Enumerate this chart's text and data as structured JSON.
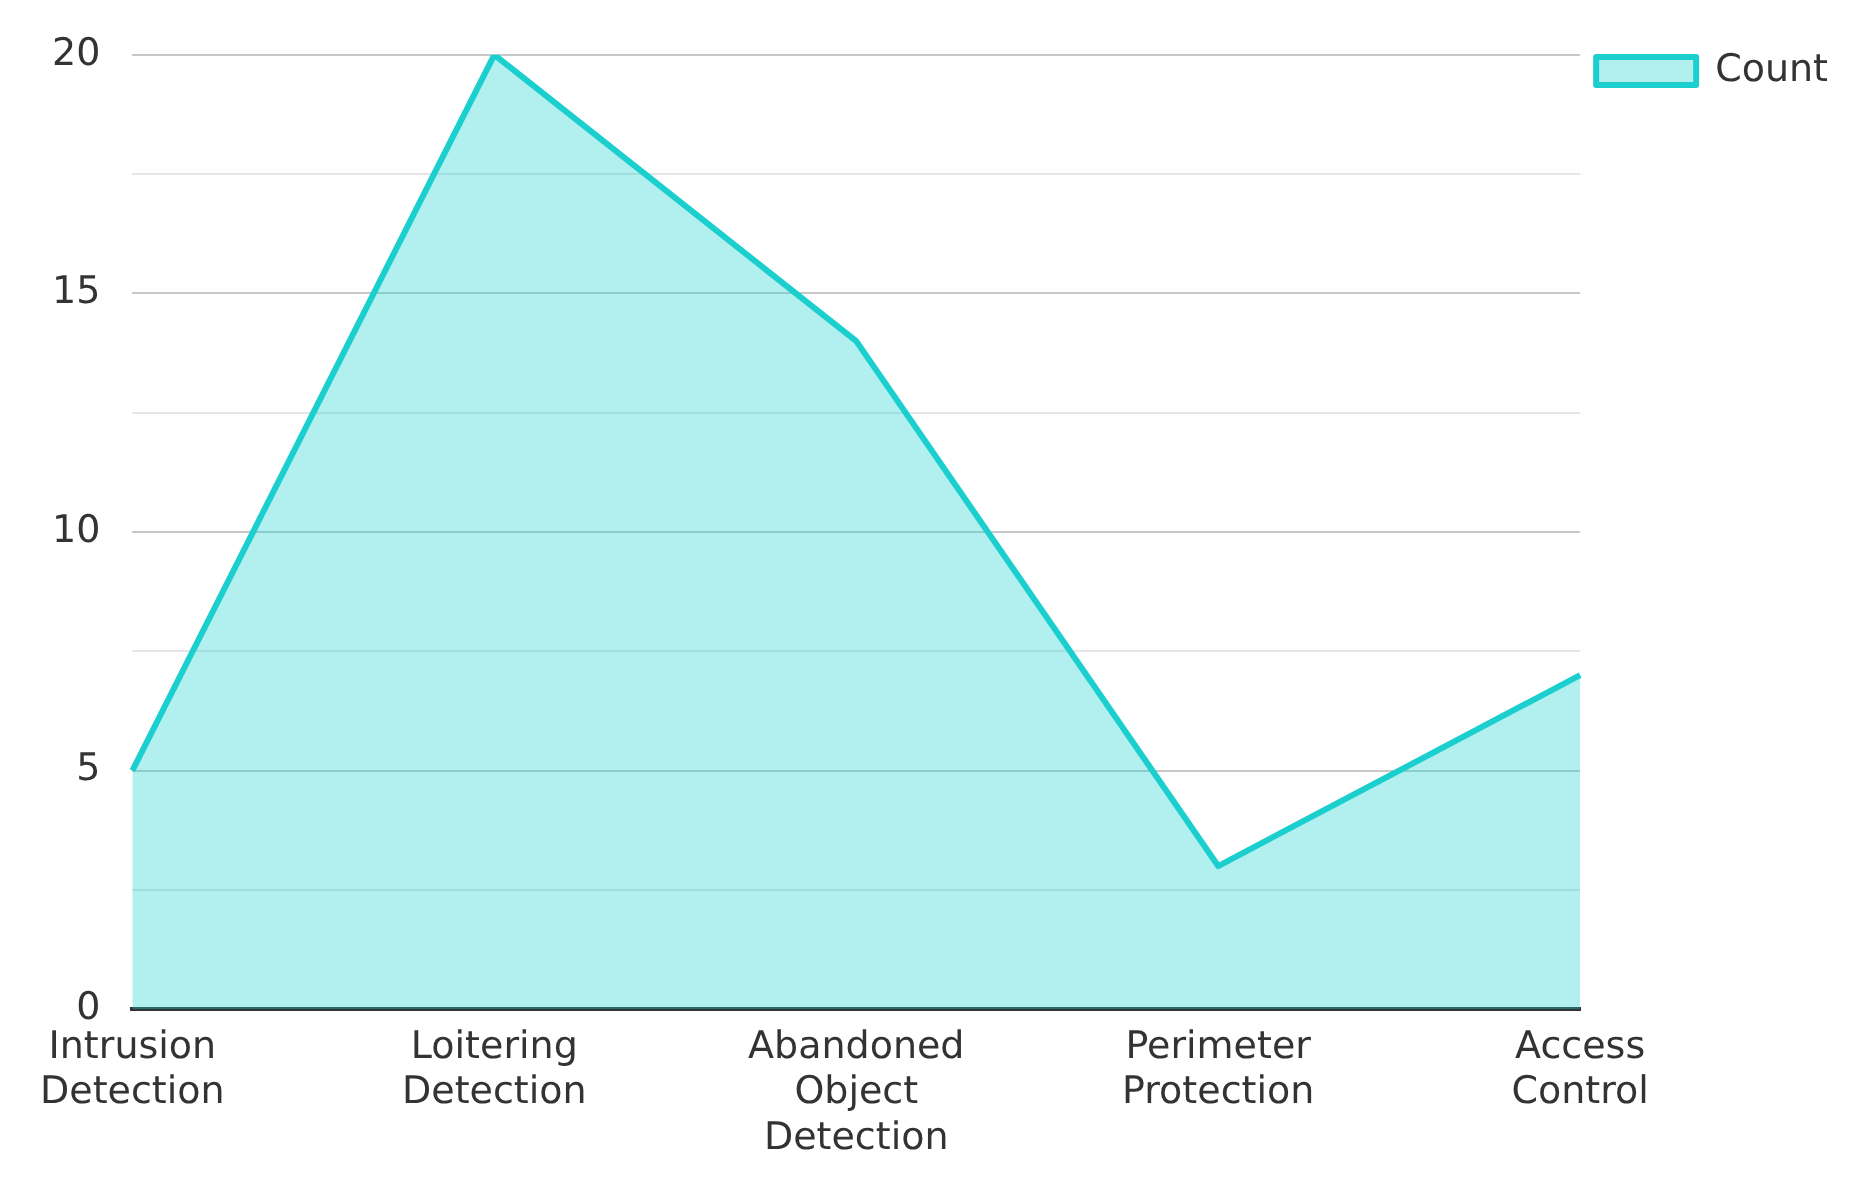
{
  "chart_data": {
    "type": "area",
    "categories": [
      "Intrusion Detection",
      "Loitering Detection",
      "Abandoned Object Detection",
      "Perimeter Protection",
      "Access Control"
    ],
    "series": [
      {
        "name": "Count",
        "color": "#1ccfcf",
        "values": [
          5,
          20,
          14,
          3,
          7
        ]
      }
    ],
    "ylim": [
      0,
      20
    ],
    "yticks": [
      0,
      {
        "value": 2.5,
        "label": null
      },
      5,
      {
        "value": 7.5,
        "label": null
      },
      10,
      {
        "value": 12.5,
        "label": null
      },
      15,
      {
        "value": 17.5,
        "label": null
      },
      20
    ],
    "grid": "y",
    "legend": "top right",
    "marker": "none"
  }
}
